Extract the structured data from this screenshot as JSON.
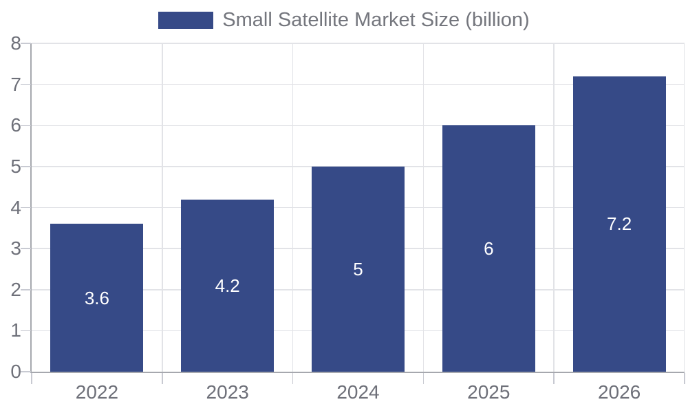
{
  "chart_data": {
    "type": "bar",
    "title": "",
    "series_name": "Small Satellite Market Size (billion)",
    "categories": [
      "2022",
      "2023",
      "2024",
      "2025",
      "2026"
    ],
    "values": [
      3.6,
      4.2,
      5,
      6,
      7.2
    ],
    "value_labels": [
      "3.6",
      "4.2",
      "5",
      "6",
      "7.2"
    ],
    "xlabel": "",
    "ylabel": "",
    "ylim": [
      0,
      8
    ],
    "ytick_labels": [
      "0",
      "1",
      "2",
      "3",
      "4",
      "5",
      "6",
      "7",
      "8"
    ],
    "grid": true,
    "legend_position": "top-center",
    "colors": {
      "bar": "#364a87",
      "bar_value_text": "#ffffff",
      "legend_text": "#74767d",
      "axis_label": "#6e7079",
      "axis_line": "#a6a8ae",
      "tick": "#c8cad2",
      "gridline": "#e2e3e7",
      "background": "#ffffff"
    }
  }
}
